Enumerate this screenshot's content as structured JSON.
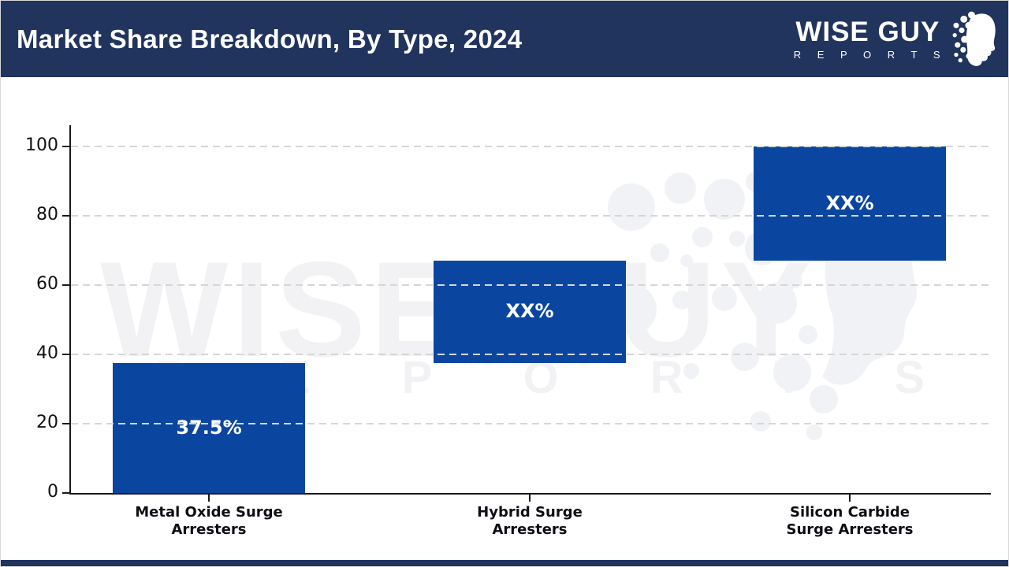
{
  "header": {
    "title": "Market Share Breakdown, By Type, 2024",
    "bg_color": "#21345e",
    "logo": {
      "line1": "WISE GUY",
      "line2": "R E P O R T S",
      "face_icon": "dotted-face-profile"
    }
  },
  "watermark": {
    "line1": "WISE GUY",
    "line2": "R E P O R T S"
  },
  "chart_data": {
    "type": "bar",
    "variant": "floating-waterfall-segments",
    "title": "Market Share Breakdown, By Type, 2024",
    "categories": [
      "Metal Oxide Surge Arresters",
      "Hybrid Surge Arresters",
      "Silicon Carbide Surge Arresters"
    ],
    "category_label_lines": [
      [
        "Metal Oxide Surge",
        "Arresters"
      ],
      [
        "Hybrid Surge",
        "Arresters"
      ],
      [
        "Silicon Carbide",
        "Surge Arresters"
      ]
    ],
    "bars": [
      {
        "category": "Metal Oxide Surge Arresters",
        "start": 0,
        "end": 37.5,
        "label": "37.5%"
      },
      {
        "category": "Hybrid Surge Arresters",
        "start": 37.5,
        "end": 67,
        "label": "XX%"
      },
      {
        "category": "Silicon Carbide Surge Arresters",
        "start": 67,
        "end": 100,
        "label": "XX%"
      }
    ],
    "bar_color": "#0a46a0",
    "bar_label_color": "#ffffff",
    "xlabel": "",
    "ylabel": "",
    "ylim": [
      0,
      100
    ],
    "yticks": [
      0,
      20,
      40,
      60,
      80,
      100
    ],
    "grid": "horizontal dashed, light gray, drawn over bars",
    "legend": "none"
  },
  "footer": {
    "bg_color": "#21345e"
  }
}
